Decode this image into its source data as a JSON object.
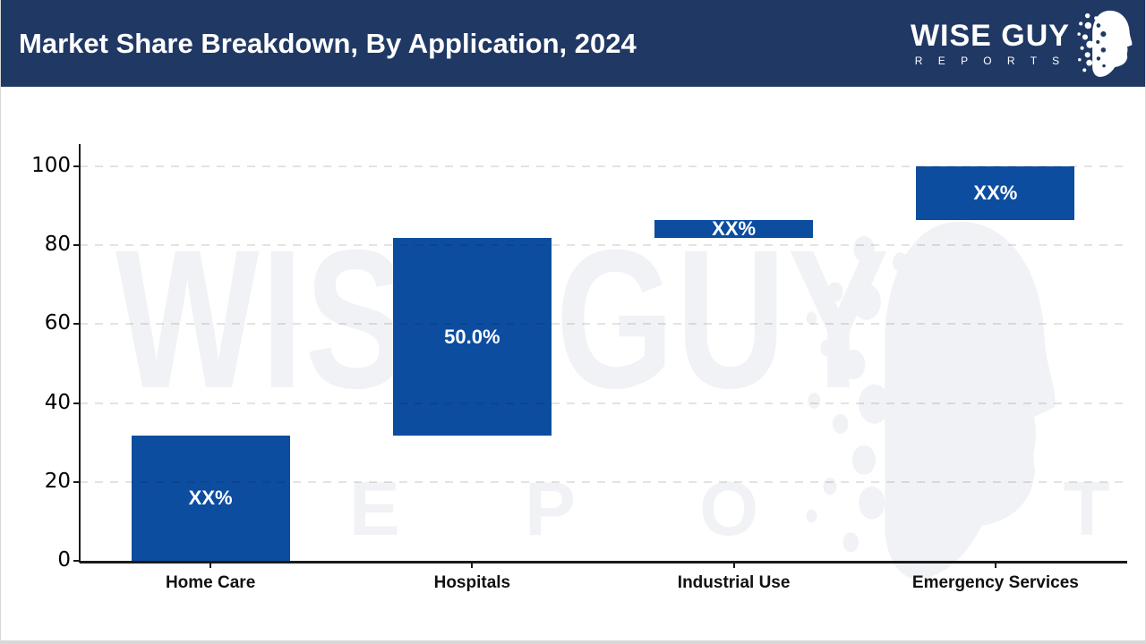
{
  "header": {
    "title": "Market Share Breakdown, By Application, 2024",
    "logo": {
      "line1": "WISE GUY",
      "line2": "R E P O R T S"
    }
  },
  "watermark": {
    "line1": "WISE GUY",
    "line2": "R E P O R T S"
  },
  "chart_data": {
    "type": "bar",
    "subtype": "waterfall",
    "title": "Market Share Breakdown, By Application, 2024",
    "categories": [
      "Home Care",
      "Hospitals",
      "Industrial Use",
      "Emergency Services"
    ],
    "segments": [
      {
        "category": "Home Care",
        "start": 0,
        "end": 31.8,
        "value": 31.8,
        "label": "XX%"
      },
      {
        "category": "Hospitals",
        "start": 31.8,
        "end": 81.8,
        "value": 50.0,
        "label": "50.0%"
      },
      {
        "category": "Industrial Use",
        "start": 81.8,
        "end": 86.4,
        "value": 4.6,
        "label": "XX%"
      },
      {
        "category": "Emergency Services",
        "start": 86.4,
        "end": 100,
        "value": 13.6,
        "label": "XX%"
      }
    ],
    "y_ticks": [
      0,
      20,
      40,
      60,
      80,
      100
    ],
    "ylim": [
      0,
      100
    ],
    "xlabel": "",
    "ylabel": "",
    "grid": "horizontal-dashed",
    "legend": "none"
  },
  "colors": {
    "header_bg": "#203864",
    "bar": "#0c4da0",
    "axis": "#1a1a1a",
    "grid": "#e3e3e3",
    "watermark": "#f1f2f5",
    "bar_label": "#ffffff"
  }
}
